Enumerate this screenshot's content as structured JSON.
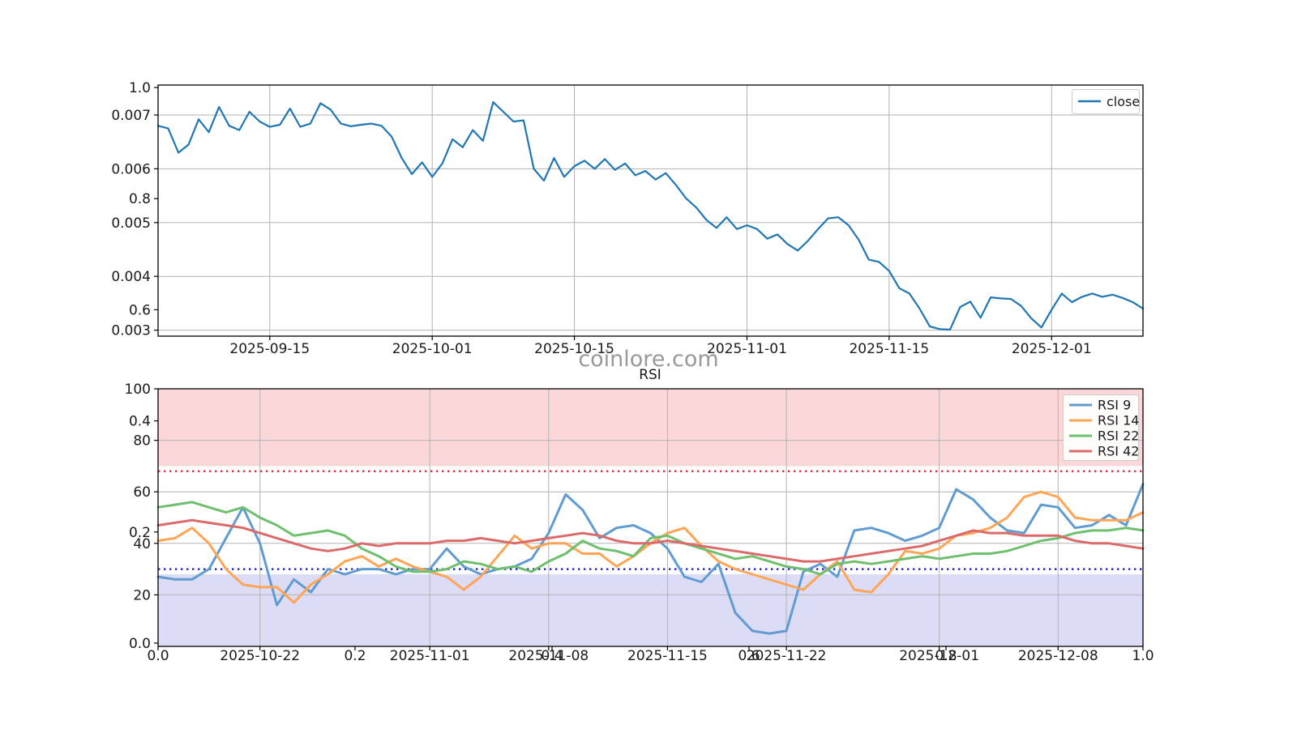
{
  "page": {
    "watermark": "coinlore.com"
  },
  "colors": {
    "close": "#2077b4",
    "rsi9": "#619cd1",
    "rsi14": "#ffa555",
    "rsi22": "#6ec06e",
    "rsi42": "#dc6a6a",
    "grid": "#b3b3b3",
    "frame": "#000000",
    "overbought_band": "#fbd7da",
    "oversold_band": "#dddcf6",
    "overbought_line": "#dd2233",
    "oversold_line": "#1111cc",
    "watermark_text": "#999999"
  },
  "overlay_axis": {
    "x_tick_labels": [
      "0.0",
      "0.2",
      "0.4",
      "0.6",
      "0.8",
      "1.0"
    ],
    "y_tick_labels": [
      "1.0",
      "0.8",
      "0.6",
      "0.4",
      "0.2",
      "0.0"
    ]
  },
  "chart_data": [
    {
      "type": "line",
      "title": "",
      "x_start_date": "2025-09-04",
      "x_interval": "daily",
      "x_tick_labels": [
        "2025-09-15",
        "2025-10-01",
        "2025-10-15",
        "2025-11-01",
        "2025-11-15",
        "2025-12-01"
      ],
      "x_tick_indices": [
        11,
        27,
        41,
        58,
        72,
        88
      ],
      "y_tick_labels": [
        "0.007",
        "0.006",
        "0.005",
        "0.004",
        "0.003"
      ],
      "y_tick_values": [
        0.007,
        0.006,
        0.005,
        0.004,
        0.003
      ],
      "ylim": [
        0.00289,
        0.00756
      ],
      "grid": true,
      "legend_position": "upper right",
      "series": [
        {
          "name": "close",
          "color_key": "close",
          "values": [
            0.0068,
            0.00675,
            0.0063,
            0.00645,
            0.00692,
            0.00668,
            0.00715,
            0.0068,
            0.00672,
            0.00706,
            0.00688,
            0.00678,
            0.00682,
            0.00712,
            0.00678,
            0.00684,
            0.00722,
            0.0071,
            0.00684,
            0.00679,
            0.00682,
            0.00684,
            0.0068,
            0.0066,
            0.0062,
            0.0059,
            0.00612,
            0.00585,
            0.0061,
            0.00655,
            0.0064,
            0.00672,
            0.00652,
            0.00724,
            0.00706,
            0.00688,
            0.0069,
            0.006,
            0.00578,
            0.0062,
            0.00585,
            0.00605,
            0.00615,
            0.006,
            0.00618,
            0.00598,
            0.0061,
            0.00588,
            0.00596,
            0.0058,
            0.00592,
            0.0057,
            0.00545,
            0.00528,
            0.00505,
            0.0049,
            0.0051,
            0.00488,
            0.00495,
            0.00488,
            0.0047,
            0.00478,
            0.0046,
            0.00448,
            0.00466,
            0.00488,
            0.00508,
            0.0051,
            0.00495,
            0.00468,
            0.00431,
            0.00427,
            0.0041,
            0.00378,
            0.00368,
            0.0034,
            0.00307,
            0.00302,
            0.00301,
            0.00343,
            0.00353,
            0.00323,
            0.00361,
            0.00359,
            0.00358,
            0.00345,
            0.00322,
            0.00305,
            0.00338,
            0.00368,
            0.00352,
            0.00362,
            0.00368,
            0.00362,
            0.00366,
            0.0036,
            0.00352,
            0.0034
          ]
        }
      ]
    },
    {
      "type": "line",
      "title": "RSI",
      "x_start_date": "2025-10-16",
      "x_interval": "daily",
      "x_tick_labels": [
        "2025-10-22",
        "2025-11-01",
        "2025-11-08",
        "2025-11-15",
        "2025-11-22",
        "2025-12-01",
        "2025-12-08"
      ],
      "x_tick_indices": [
        6,
        16,
        23,
        30,
        37,
        46,
        53
      ],
      "y_tick_labels": [
        "100",
        "80",
        "60",
        "40",
        "20"
      ],
      "y_tick_values": [
        100,
        80,
        60,
        40,
        20
      ],
      "ylim": [
        0,
        100
      ],
      "grid": true,
      "overbought_level": 70,
      "oversold_level": 30,
      "bands": {
        "overbought": [
          70,
          100
        ],
        "oversold": [
          0,
          30
        ]
      },
      "legend_position": "upper right",
      "series": [
        {
          "name": "RSI 9",
          "color_key": "rsi9",
          "values": [
            27,
            26,
            26,
            30,
            42,
            54,
            40,
            16,
            26,
            21,
            30,
            28,
            30,
            30,
            28,
            30,
            30,
            38,
            31,
            28,
            30,
            31,
            34,
            44,
            59,
            53,
            42,
            46,
            47,
            44,
            38,
            27,
            25,
            32,
            13,
            6,
            5,
            6,
            29,
            32,
            27,
            45,
            46,
            44,
            41,
            43,
            46,
            61,
            57,
            50,
            45,
            44,
            55,
            54,
            46,
            47,
            51,
            47,
            63
          ]
        },
        {
          "name": "RSI 14",
          "color_key": "rsi14",
          "values": [
            41,
            42,
            46,
            40,
            30,
            24,
            23,
            23,
            17,
            24,
            28,
            33,
            35,
            31,
            34,
            31,
            29,
            27,
            22,
            27,
            35,
            43,
            38,
            40,
            40,
            36,
            36,
            31,
            35,
            40,
            44,
            46,
            39,
            33,
            30,
            28,
            26,
            24,
            22,
            28,
            33,
            22,
            21,
            28,
            37,
            36,
            38,
            43,
            44,
            46,
            50,
            58,
            60,
            58,
            50,
            49,
            49,
            49,
            52
          ]
        },
        {
          "name": "RSI 22",
          "color_key": "rsi22",
          "values": [
            54,
            55,
            56,
            54,
            52,
            54,
            50,
            47,
            43,
            44,
            45,
            43,
            38,
            35,
            31,
            29,
            29,
            30,
            33,
            32,
            30,
            31,
            29,
            33,
            36,
            41,
            38,
            37,
            35,
            42,
            43,
            40,
            38,
            36,
            34,
            35,
            33,
            31,
            30,
            28,
            32,
            33,
            32,
            33,
            34,
            35,
            34,
            35,
            36,
            36,
            37,
            39,
            41,
            42,
            44,
            45,
            45,
            46,
            45
          ]
        },
        {
          "name": "RSI 42",
          "color_key": "rsi42",
          "values": [
            47,
            48,
            49,
            48,
            47,
            46,
            44,
            42,
            40,
            38,
            37,
            38,
            40,
            39,
            40,
            40,
            40,
            41,
            41,
            42,
            41,
            40,
            41,
            42,
            43,
            44,
            43,
            41,
            40,
            40,
            41,
            40,
            39,
            38,
            37,
            36,
            35,
            34,
            33,
            33,
            34,
            35,
            36,
            37,
            38,
            39,
            41,
            43,
            45,
            44,
            44,
            43,
            43,
            43,
            41,
            40,
            40,
            39,
            38
          ]
        }
      ]
    }
  ]
}
